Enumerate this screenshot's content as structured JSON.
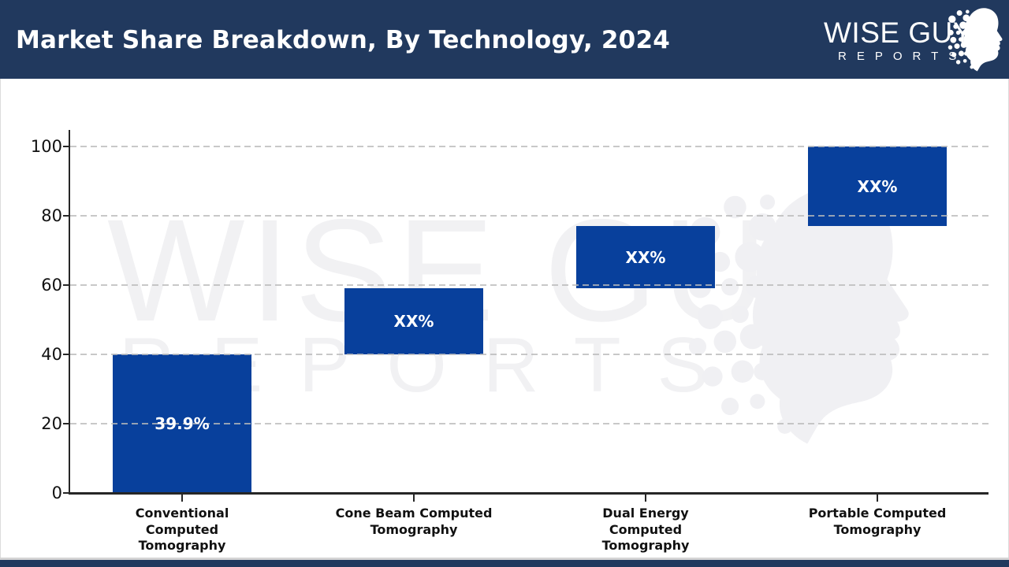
{
  "header": {
    "title": "Market Share Breakdown, By Technology, 2024",
    "logo": {
      "wise_guy": "WISE GUY",
      "reports": "REPORTS"
    },
    "bg_color": "#21395e"
  },
  "watermark": {
    "wise_guy": "WISE GUY",
    "reports": "REPORTS"
  },
  "chart_data": {
    "type": "bar",
    "subtype": "floating-waterfall",
    "title": "Market Share Breakdown, By Technology, 2024",
    "categories": [
      "Conventional\nComputed\nTomography",
      "Cone Beam Computed\nTomography",
      "Dual Energy\nComputed\nTomography",
      "Portable Computed\nTomography"
    ],
    "bars": [
      {
        "category": "Conventional Computed Tomography",
        "start": 0,
        "end": 39.9,
        "label": "39.9%"
      },
      {
        "category": "Cone Beam Computed Tomography",
        "start": 40,
        "end": 59,
        "label": "XX%"
      },
      {
        "category": "Dual Energy Computed Tomography",
        "start": 59,
        "end": 77,
        "label": "XX%"
      },
      {
        "category": "Portable Computed Tomography",
        "start": 77,
        "end": 100,
        "label": "XX%"
      }
    ],
    "xlabel": "",
    "ylabel": "",
    "yticks": [
      0,
      20,
      40,
      60,
      80,
      100
    ],
    "ylim": [
      0,
      105
    ],
    "bar_color": "#08409c",
    "value_label_color": "#ffffff",
    "grid": "horizontal-dashed",
    "gridline_color": "#d6d6d6",
    "legend": "none"
  }
}
